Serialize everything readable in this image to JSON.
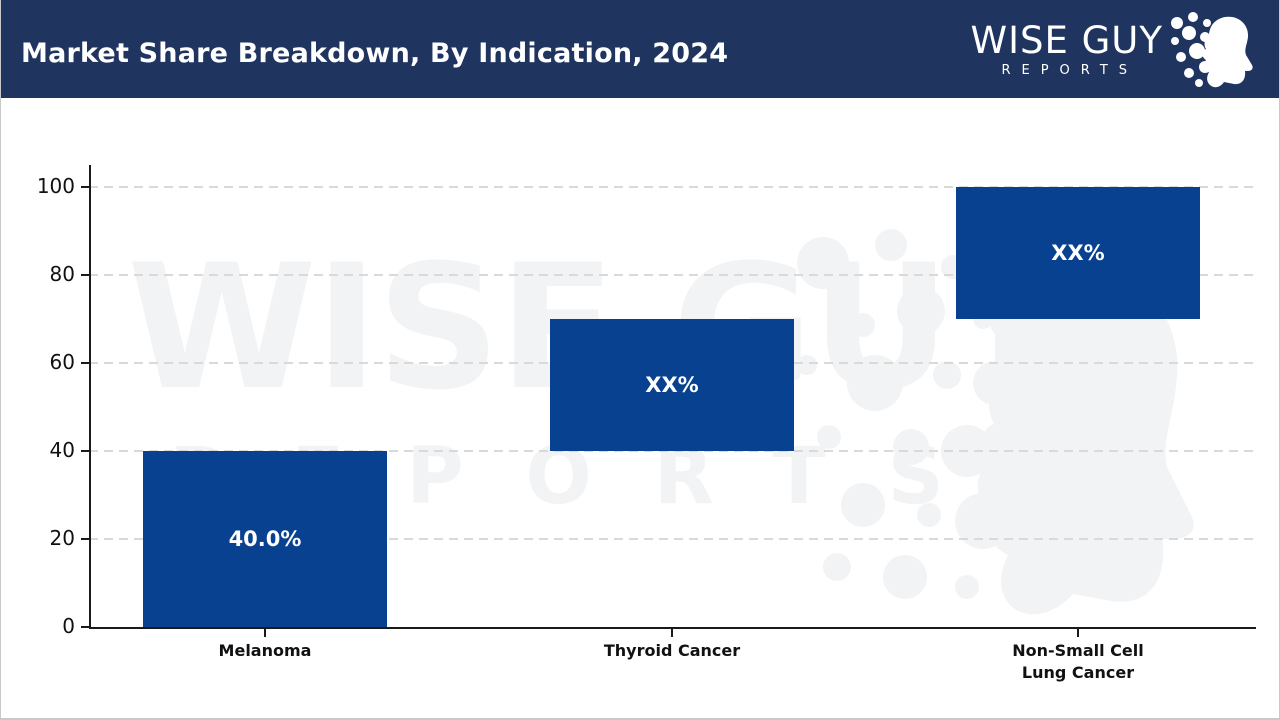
{
  "header": {
    "title": "Market Share Breakdown, By Indication, 2024",
    "logo": {
      "name": "WISE GUY",
      "sub": "REPORTS"
    }
  },
  "watermark": {
    "line1": "WISE GUY",
    "line2": "REPORTS"
  },
  "colors": {
    "header_bg": "#1f3560",
    "bar": "#07418f",
    "bar_label": "#ffffff",
    "grid": "#d9d9d9",
    "axis": "#1a1a1a",
    "watermark": "#f2f3f5"
  },
  "chart_data": {
    "type": "bar",
    "subtype": "floating-waterfall",
    "title": "Market Share Breakdown, By Indication, 2024",
    "categories": [
      "Melanoma",
      "Thyroid Cancer",
      "Non-Small Cell\nLung Cancer"
    ],
    "bars": [
      {
        "category": "Melanoma",
        "start": 0,
        "end": 40,
        "label": "40.0%"
      },
      {
        "category": "Thyroid Cancer",
        "start": 40,
        "end": 70,
        "label": "XX%"
      },
      {
        "category": "Non-Small Cell\nLung Cancer",
        "start": 70,
        "end": 100,
        "label": "XX%"
      }
    ],
    "ylim": [
      0,
      100
    ],
    "yticks": [
      0,
      20,
      40,
      60,
      80,
      100
    ],
    "xlabel": "",
    "ylabel": "",
    "grid": "horizontal-dashed",
    "legend": "none"
  }
}
